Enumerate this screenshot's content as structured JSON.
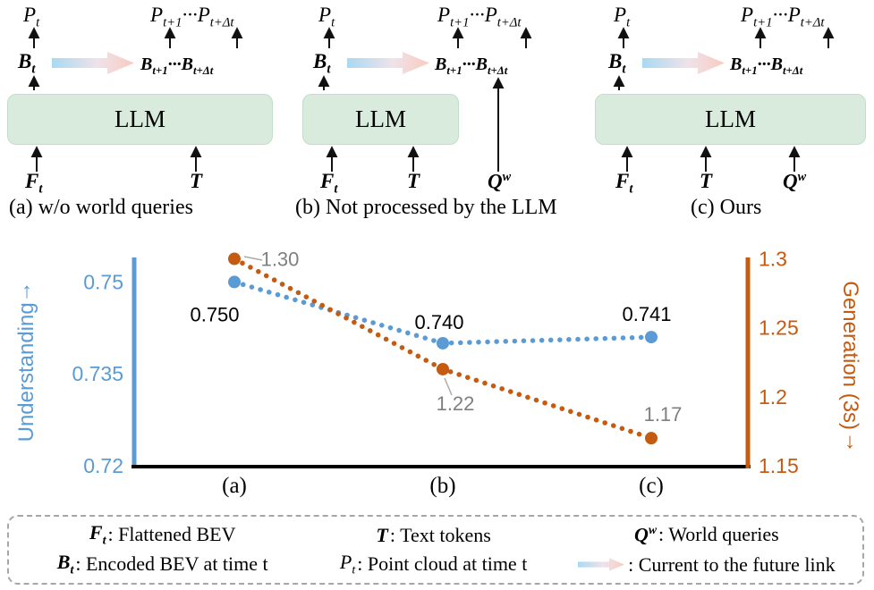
{
  "figure": {
    "sym": {
      "P": "P",
      "B": "B",
      "F": "F",
      "T": "T",
      "Q": "Q",
      "sub_t": "t",
      "sub_t1": "t+1",
      "sub_tdt": "t+Δt",
      "sup_w": "w",
      "dots": "···"
    },
    "llm_label": "LLM",
    "captions": {
      "a": "(a) w/o world queries",
      "b": "(b) Not processed by the LLM",
      "c": "(c) Ours"
    }
  },
  "chart_data": {
    "type": "line",
    "style": "dotted",
    "grid": false,
    "legend_position": "none",
    "categories": [
      "(a)",
      "(b)",
      "(c)"
    ],
    "series": [
      {
        "name": "Understanding",
        "axis": "left",
        "color": "#5B9BD5",
        "values": [
          0.75,
          0.74,
          0.741
        ],
        "point_labels": [
          "0.750",
          "0.740",
          "0.741"
        ],
        "label_color": "#000000"
      },
      {
        "name": "Generation (3s)",
        "axis": "right",
        "color": "#C55A11",
        "values": [
          1.3,
          1.22,
          1.17
        ],
        "point_labels": [
          "1.30",
          "1.22",
          "1.17"
        ],
        "label_color": "#7f7f7f"
      }
    ],
    "left_axis": {
      "title": "Understanding",
      "arrow": "↑",
      "color": "#5B9BD5",
      "tick_labels": [
        "0.72",
        "0.735",
        "0.75"
      ],
      "tick_values": [
        0.72,
        0.735,
        0.75
      ],
      "range": [
        0.72,
        0.754
      ]
    },
    "right_axis": {
      "title": "Generation (3s)",
      "arrow": "↓",
      "color": "#C55A11",
      "tick_labels": [
        "1.15",
        "1.2",
        "1.25",
        "1.3"
      ],
      "tick_values": [
        1.15,
        1.2,
        1.25,
        1.3
      ],
      "range": [
        1.15,
        1.301
      ]
    },
    "x_axis_color": "#000000"
  },
  "legend": {
    "items": [
      {
        "symbol": "F_t",
        "desc": ": Flattened BEV"
      },
      {
        "symbol": "T",
        "desc": ": Text tokens"
      },
      {
        "symbol": "Q_w",
        "desc": ": World queries"
      },
      {
        "symbol": "B_t",
        "desc": ": Encoded BEV at time t"
      },
      {
        "symbol": "P_t",
        "desc": ": Point cloud at time t"
      },
      {
        "symbol": "flow-arrow",
        "desc": ": Current to the future link"
      }
    ]
  },
  "colors": {
    "llm_box": "#D8EBDC",
    "flow_gradient": [
      "#A9D9F2",
      "#EFE2EA",
      "#F9CBC0"
    ],
    "dashed_border": "#A6A6A6",
    "blue_accent": "#5B9BD5",
    "orange_accent": "#C55A11"
  }
}
